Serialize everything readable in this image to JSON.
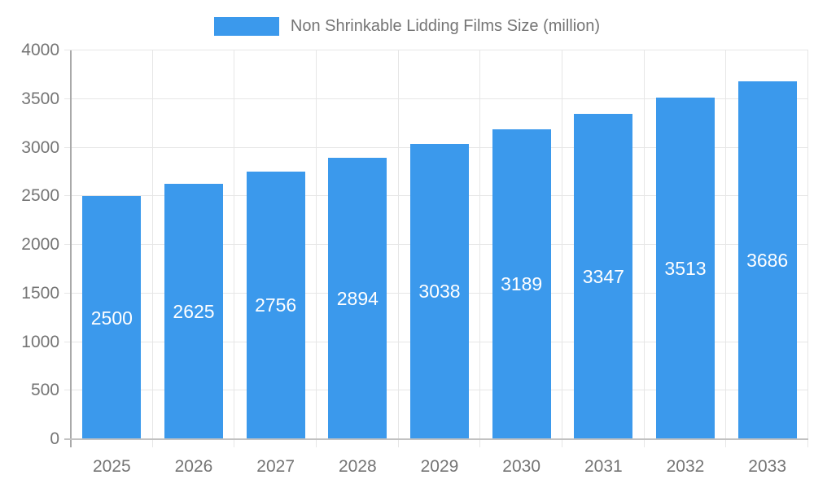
{
  "legend": {
    "label": "Non Shrinkable Lidding Films Size (million)",
    "swatch_color": "#3b99ec"
  },
  "chart_data": {
    "type": "bar",
    "title": "Non Shrinkable Lidding Films Size (million)",
    "categories": [
      "2025",
      "2026",
      "2027",
      "2028",
      "2029",
      "2030",
      "2031",
      "2032",
      "2033"
    ],
    "values": [
      2500,
      2625,
      2756,
      2894,
      3038,
      3189,
      3347,
      3513,
      3686
    ],
    "xlabel": "",
    "ylabel": "",
    "ylim": [
      0,
      4000
    ],
    "yticks": [
      0,
      500,
      1000,
      1500,
      2000,
      2500,
      3000,
      3500,
      4000
    ],
    "grid": true,
    "legend_position": "top",
    "colors": {
      "bar": "#3b99ec",
      "value_label": "#ffffff",
      "axis_text": "#757575",
      "gridline": "#e6e6e6",
      "axis_line": "#a9a9a9",
      "baseline": "#c2c2c2"
    }
  }
}
